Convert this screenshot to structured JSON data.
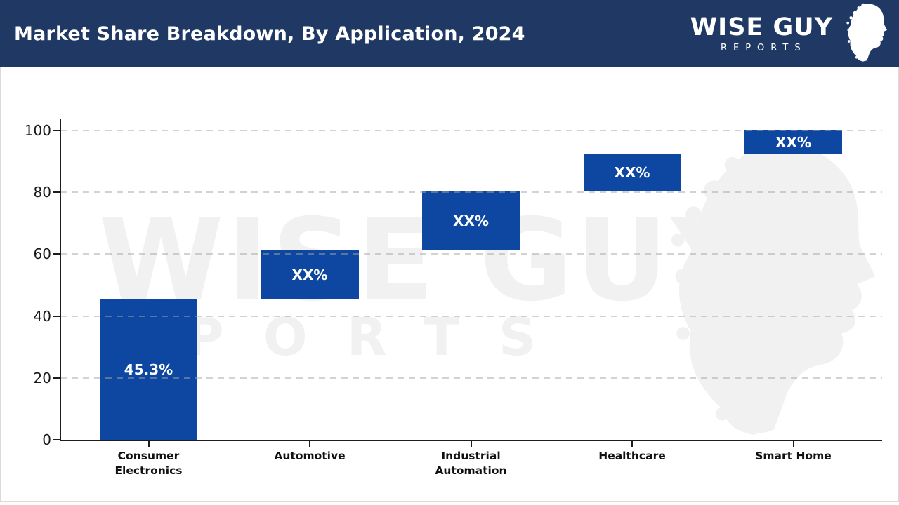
{
  "header": {
    "title": "Market Share Breakdown, By Application, 2024",
    "bg_color": "#1f3864",
    "logo": {
      "name": "WISE GUY",
      "subname": "R E P O R T S"
    }
  },
  "watermark": {
    "line1": "WISE GUY",
    "line2": "R E P O R T S"
  },
  "chart_data": {
    "type": "bar",
    "subtype": "waterfall",
    "title": "Market Share Breakdown, By Application, 2024",
    "categories": [
      [
        "Consumer",
        "Electronics"
      ],
      [
        "Automotive"
      ],
      [
        "Industrial",
        "Automation"
      ],
      [
        "Healthcare"
      ],
      [
        "Smart Home"
      ]
    ],
    "segments": [
      {
        "name": "Consumer Electronics",
        "start": 0,
        "end": 45.3,
        "label": "45.3%"
      },
      {
        "name": "Automotive",
        "start": 45.3,
        "end": 61.3,
        "label": "XX%"
      },
      {
        "name": "Industrial Automation",
        "start": 61.3,
        "end": 80.3,
        "label": "XX%"
      },
      {
        "name": "Healthcare",
        "start": 80.3,
        "end": 92.3,
        "label": "XX%"
      },
      {
        "name": "Smart Home",
        "start": 92.3,
        "end": 100,
        "label": "XX%"
      }
    ],
    "y_ticks": [
      0,
      20,
      40,
      60,
      80,
      100
    ],
    "ylim": [
      0,
      105
    ],
    "bar_color": "#0d47a1",
    "grid": {
      "style": "dashed",
      "orientation": "horizontal",
      "color": "#d9d9d9"
    },
    "legend": "none",
    "xlabel": "",
    "ylabel": ""
  }
}
